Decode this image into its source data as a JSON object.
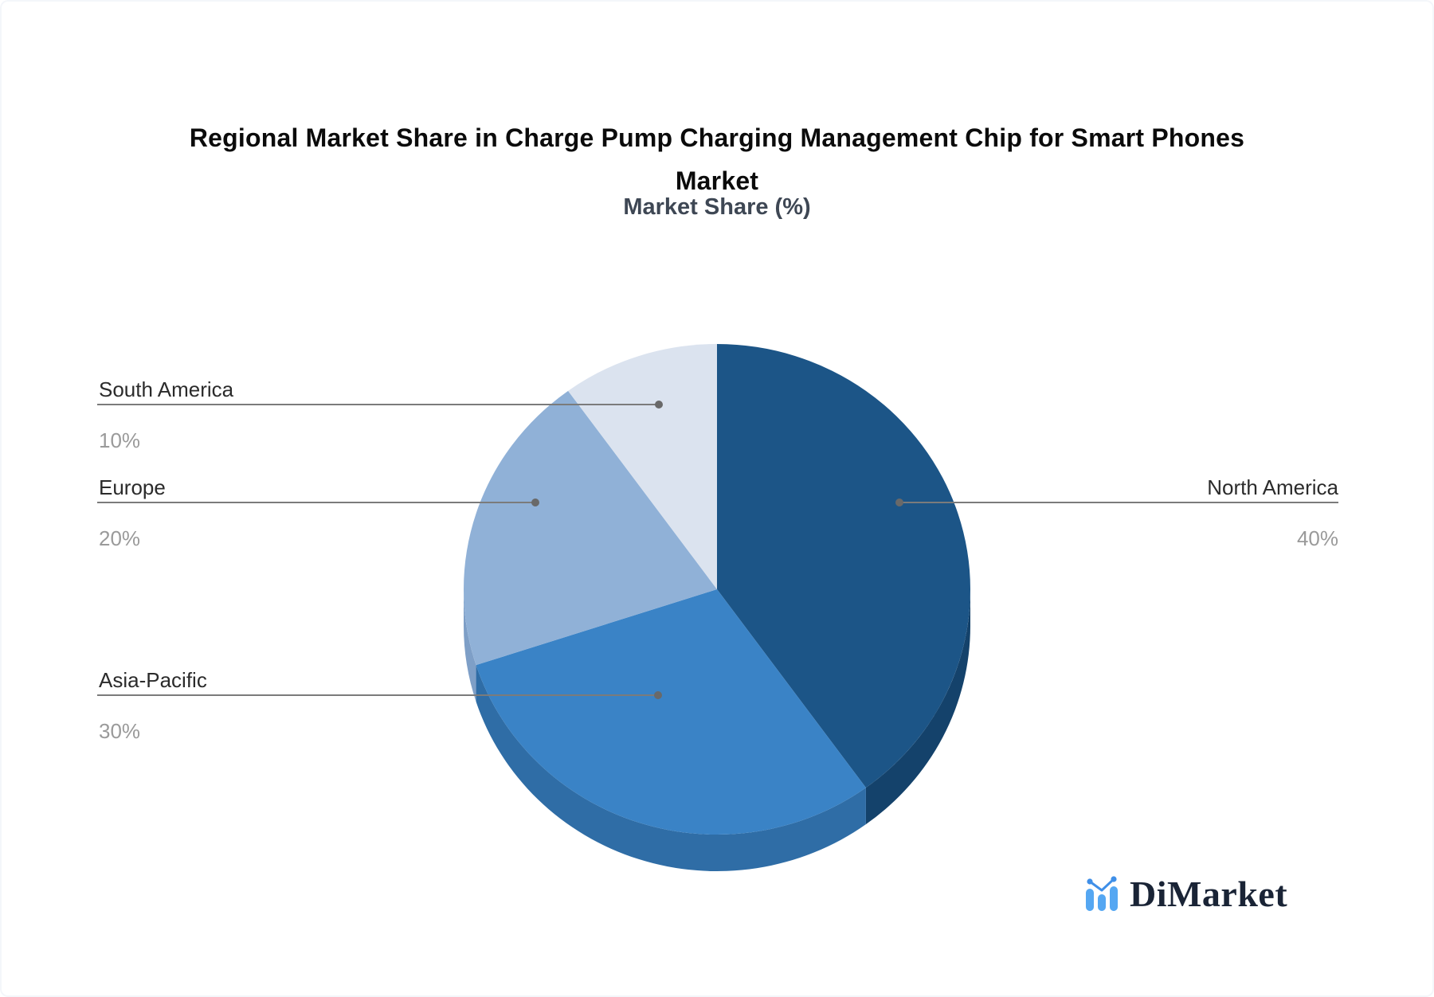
{
  "title_lines": [
    "Regional Market Share in Charge Pump Charging Management Chip for Smart Phones",
    "Market"
  ],
  "subtitle": "Market Share (%)",
  "chart_data": {
    "type": "pie",
    "title": "Regional Market Share in Charge Pump Charging Management Chip for Smart Phones Market",
    "subtitle": "Market Share (%)",
    "unit": "%",
    "start_angle_deg_from_top": 0,
    "direction": "clockwise",
    "style": "3d-depth",
    "legend_position": "callout-labels",
    "slices": [
      {
        "label": "North America",
        "value": 40,
        "color": "#1C5587",
        "side_color": "#14426B"
      },
      {
        "label": "Asia-Pacific",
        "value": 30,
        "color": "#3A83C6",
        "side_color": "#2F6DA6"
      },
      {
        "label": "Europe",
        "value": 20,
        "color": "#90B1D7",
        "side_color": "#7E9FC7"
      },
      {
        "label": "South America",
        "value": 10,
        "color": "#DBE3EF",
        "side_color": "#C9D4E4"
      }
    ]
  },
  "labels": {
    "north_america": {
      "name": "North America",
      "value": "40%"
    },
    "asia_pacific": {
      "name": "Asia-Pacific",
      "value": "30%"
    },
    "europe": {
      "name": "Europe",
      "value": "20%"
    },
    "south_america": {
      "name": "South America",
      "value": "10%"
    }
  },
  "logo": {
    "text": "DiMarket"
  },
  "colors": {
    "title": "#0B0B0B",
    "subtitle": "#3E4754",
    "label_name": "#2B2B2B",
    "label_value": "#9A9A9A",
    "callout_line": "#7B7B7B",
    "callout_dot": "#696969",
    "logo_text": "#1A2436",
    "logo_bar_blue": "#55A7F2",
    "logo_accent_blue": "#3F8FE8",
    "background": "#FFFFFF"
  }
}
